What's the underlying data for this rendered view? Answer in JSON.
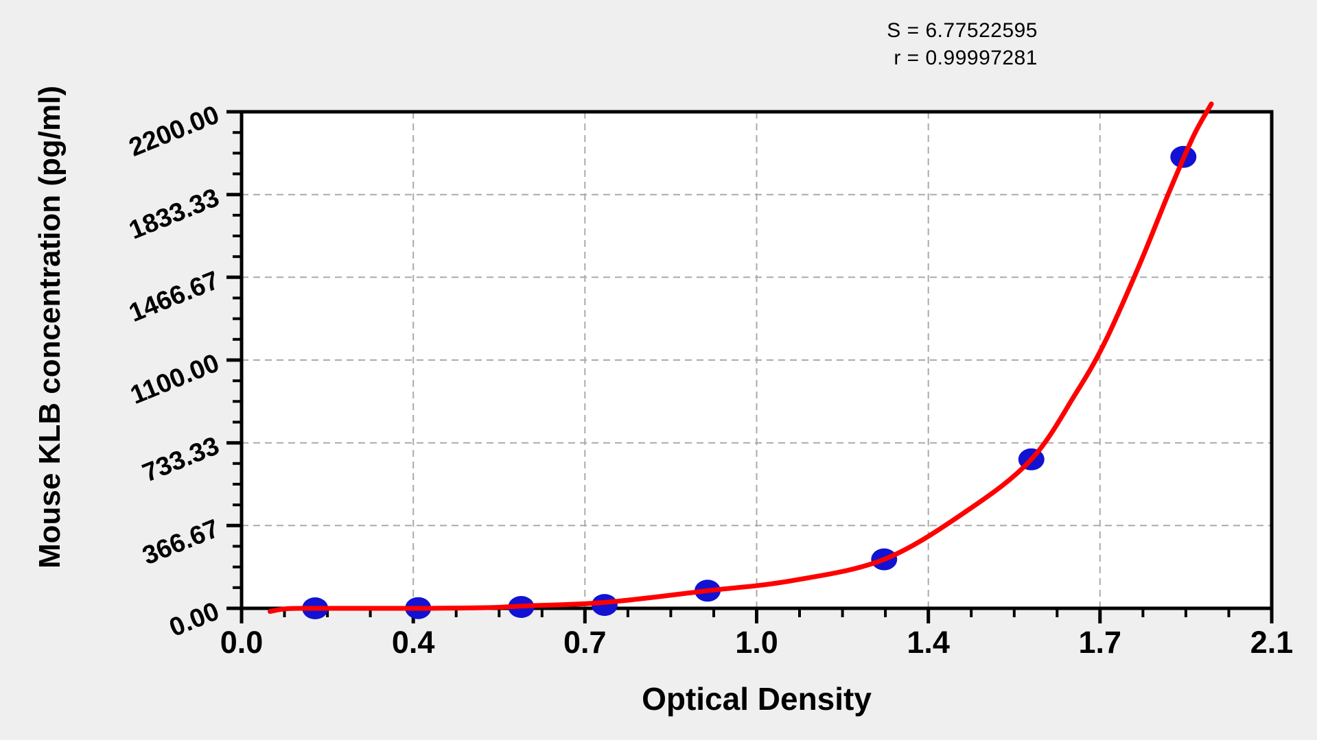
{
  "stats_box": {
    "s_label": "S = 6.77522595",
    "r_label": "r = 0.99997281"
  },
  "chart_data": {
    "type": "scatter",
    "title": "",
    "xlabel": "Optical Density",
    "ylabel": "Mouse KLB concentration (pg/ml)",
    "xlim": [
      0,
      2.1
    ],
    "ylim": [
      0,
      2200
    ],
    "x_ticks": [
      {
        "v": 0.0,
        "label": "0.0"
      },
      {
        "v": 0.35,
        "label": "0.4"
      },
      {
        "v": 0.7,
        "label": "0.7"
      },
      {
        "v": 1.05,
        "label": "1.0"
      },
      {
        "v": 1.4,
        "label": "1.4"
      },
      {
        "v": 1.75,
        "label": "1.7"
      },
      {
        "v": 2.1,
        "label": "2.1"
      }
    ],
    "y_ticks": [
      {
        "v": 0,
        "label": "0.00"
      },
      {
        "v": 366.67,
        "label": "366.67"
      },
      {
        "v": 733.33,
        "label": "733.33"
      },
      {
        "v": 1100,
        "label": "1100.00"
      },
      {
        "v": 1466.67,
        "label": "1466.67"
      },
      {
        "v": 1833.33,
        "label": "1833.33"
      },
      {
        "v": 2200,
        "label": "2200.00"
      }
    ],
    "minor_ticks_per_interval": 3,
    "grid": "dashed-at-major-ticks",
    "legend": "none",
    "points": {
      "name": "standard-points",
      "od": [
        0.15,
        0.36,
        0.57,
        0.74,
        0.95,
        1.31,
        1.61,
        1.92
      ],
      "conc": [
        0,
        1,
        6,
        15,
        78,
        217,
        660,
        2000
      ]
    },
    "fit_curve": {
      "name": "regression-curve",
      "od": [
        0.058,
        0.09,
        0.145,
        0.36,
        0.5,
        0.57,
        0.74,
        0.95,
        1.12,
        1.31,
        1.48,
        1.61,
        1.7,
        1.76,
        1.83,
        1.89,
        1.94,
        1.977
      ],
      "conc": [
        -14,
        -2,
        0,
        0,
        3,
        10,
        26,
        78,
        122,
        217,
        434,
        660,
        950,
        1180,
        1520,
        1840,
        2090,
        2235
      ]
    },
    "stats": {
      "S": 6.77522595,
      "r": 0.99997281
    },
    "colors": {
      "point": "#1212d2",
      "curve": "#ff0000",
      "grid": "#aaaaaa",
      "frame": "#000000",
      "plot_bg": "#ffffff",
      "page_bg": "#efefef"
    }
  }
}
